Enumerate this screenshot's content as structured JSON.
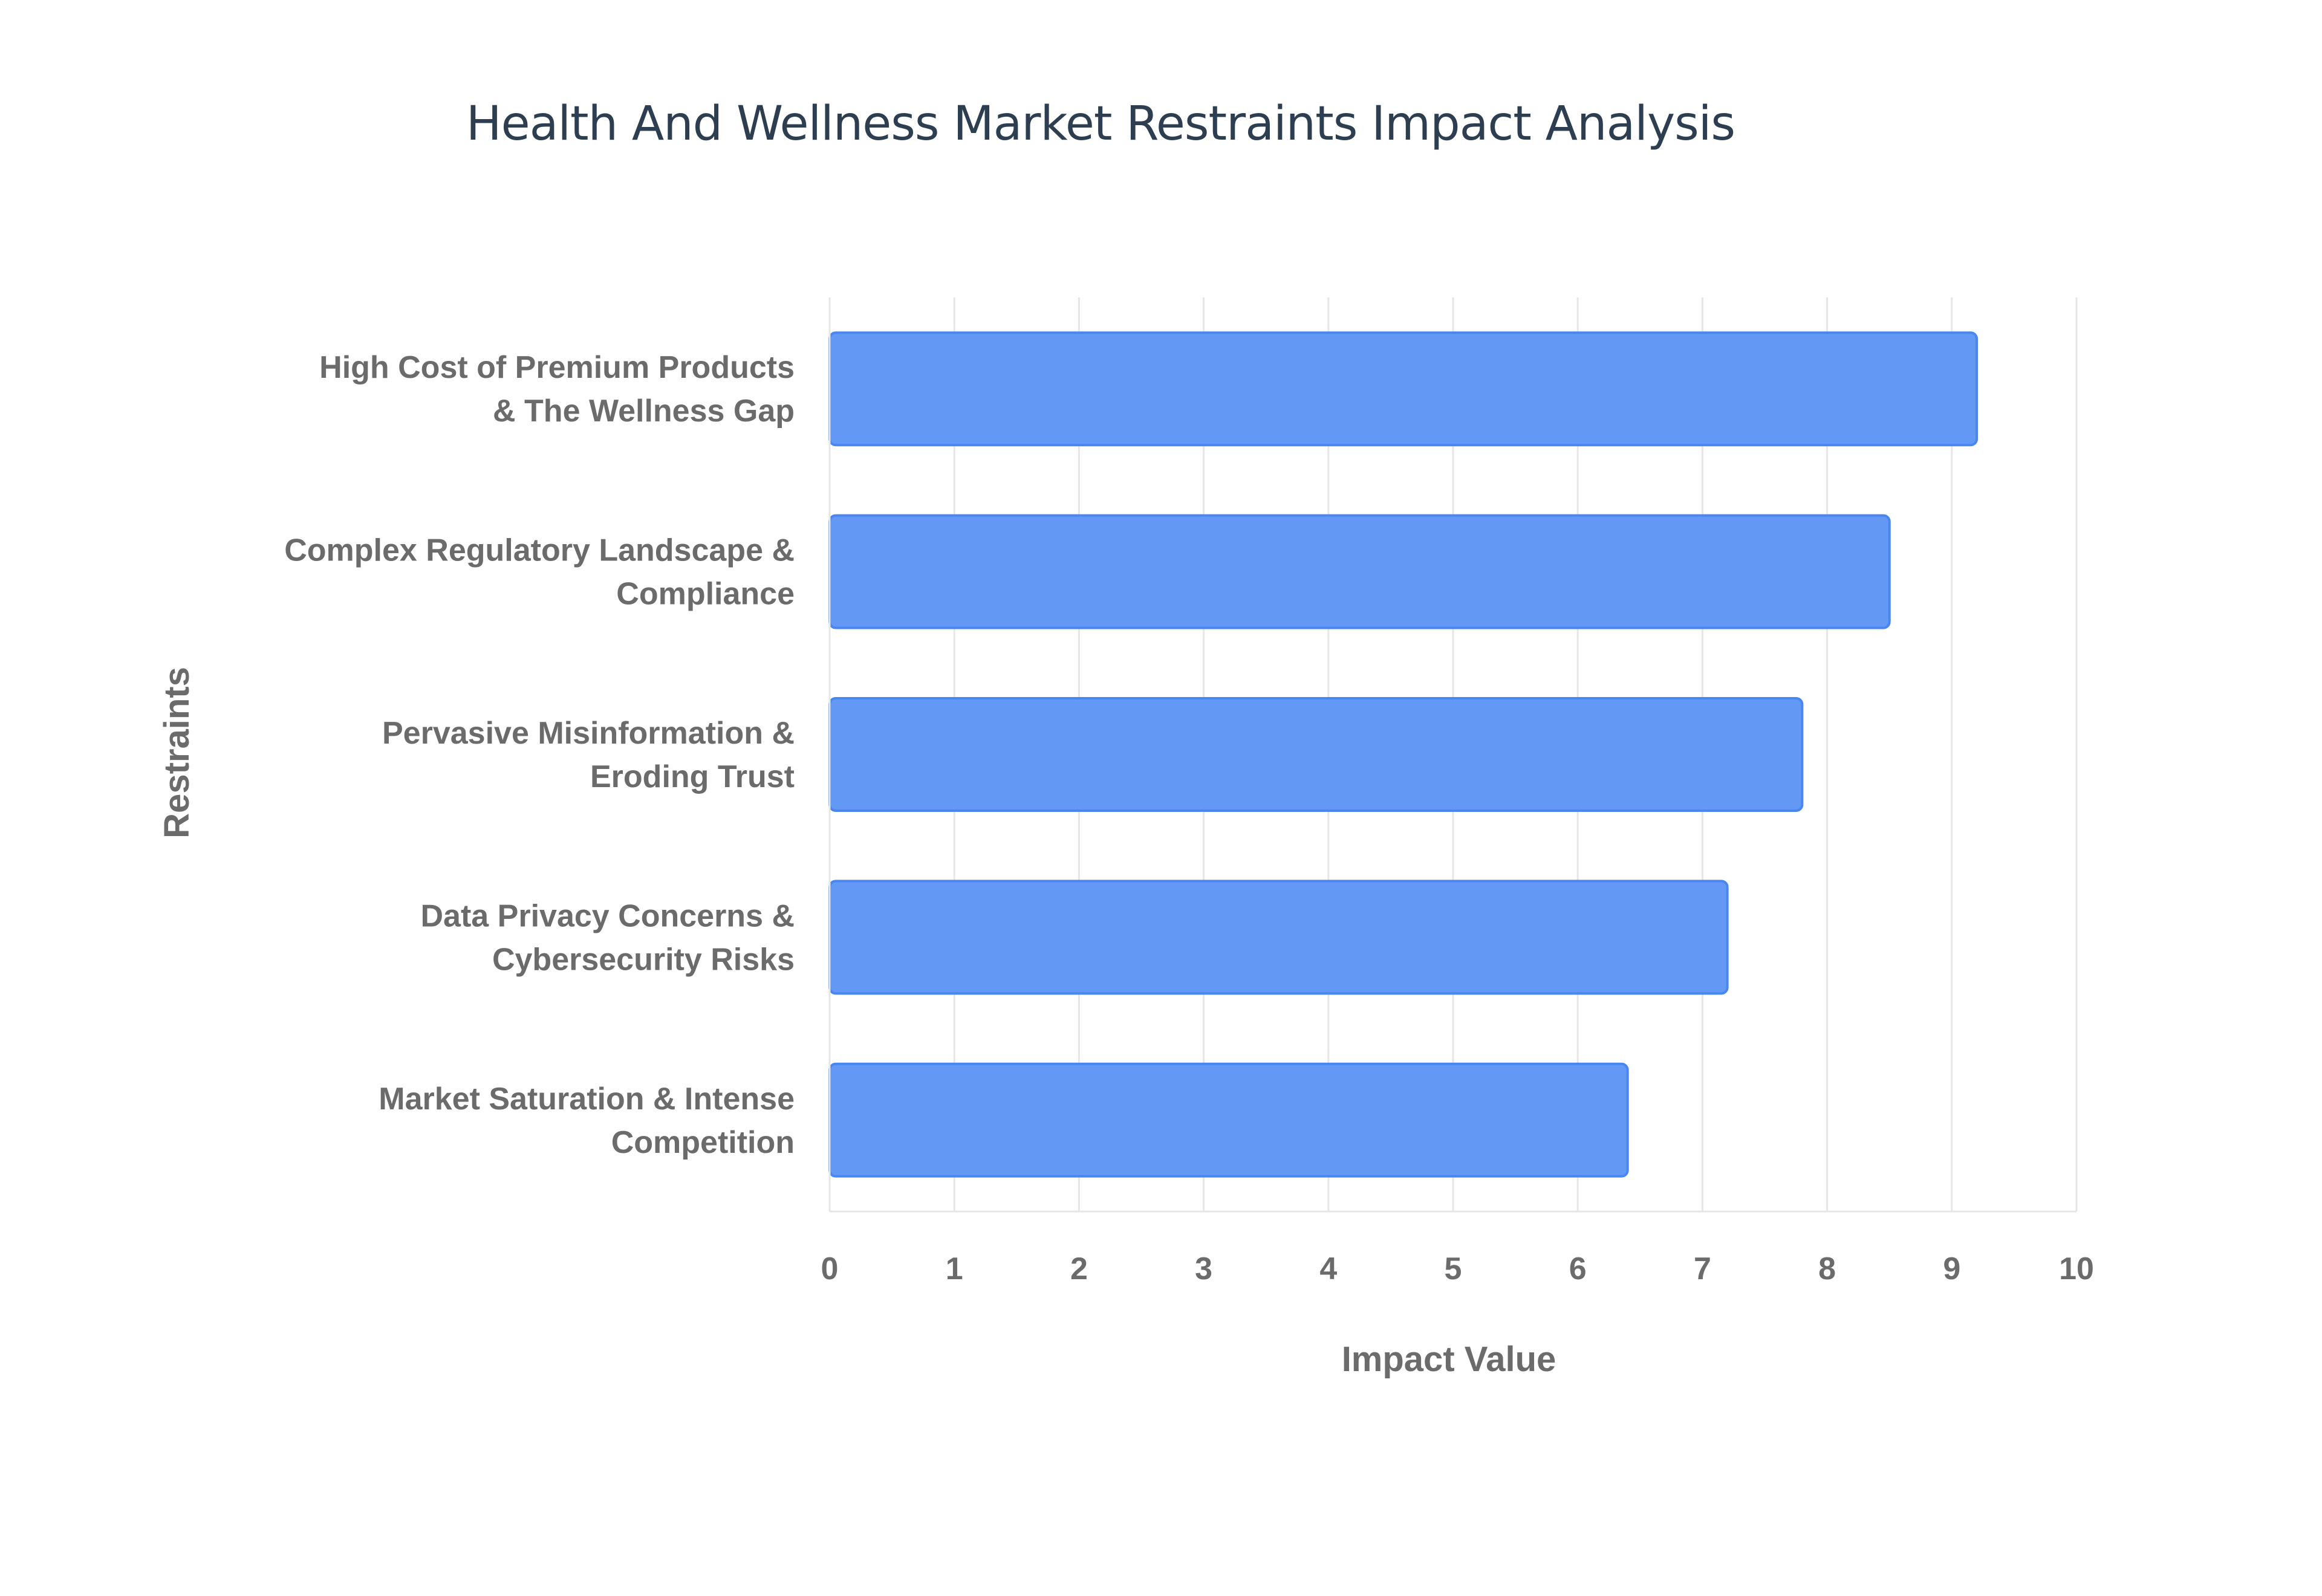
{
  "chart_data": {
    "type": "bar",
    "orientation": "horizontal",
    "title": "Health And Wellness Market Restraints Impact Analysis",
    "xlabel": "Impact Value",
    "ylabel": "Restraints",
    "xlim": [
      0,
      10
    ],
    "x_ticks": [
      "0",
      "1",
      "2",
      "3",
      "4",
      "5",
      "6",
      "7",
      "8",
      "9",
      "10"
    ],
    "grid": true,
    "legend": "none",
    "bar_color": "#6399f5",
    "bar_border_color": "#4a86f0",
    "categories": [
      [
        "High Cost of Premium Products",
        "& The Wellness Gap"
      ],
      [
        "Complex Regulatory Landscape &",
        "Compliance"
      ],
      [
        "Pervasive Misinformation &",
        "Eroding Trust"
      ],
      [
        "Data Privacy Concerns &",
        "Cybersecurity Risks"
      ],
      [
        "Market Saturation & Intense",
        "Competition"
      ]
    ],
    "values": [
      9.2,
      8.5,
      7.8,
      7.2,
      6.4
    ]
  }
}
